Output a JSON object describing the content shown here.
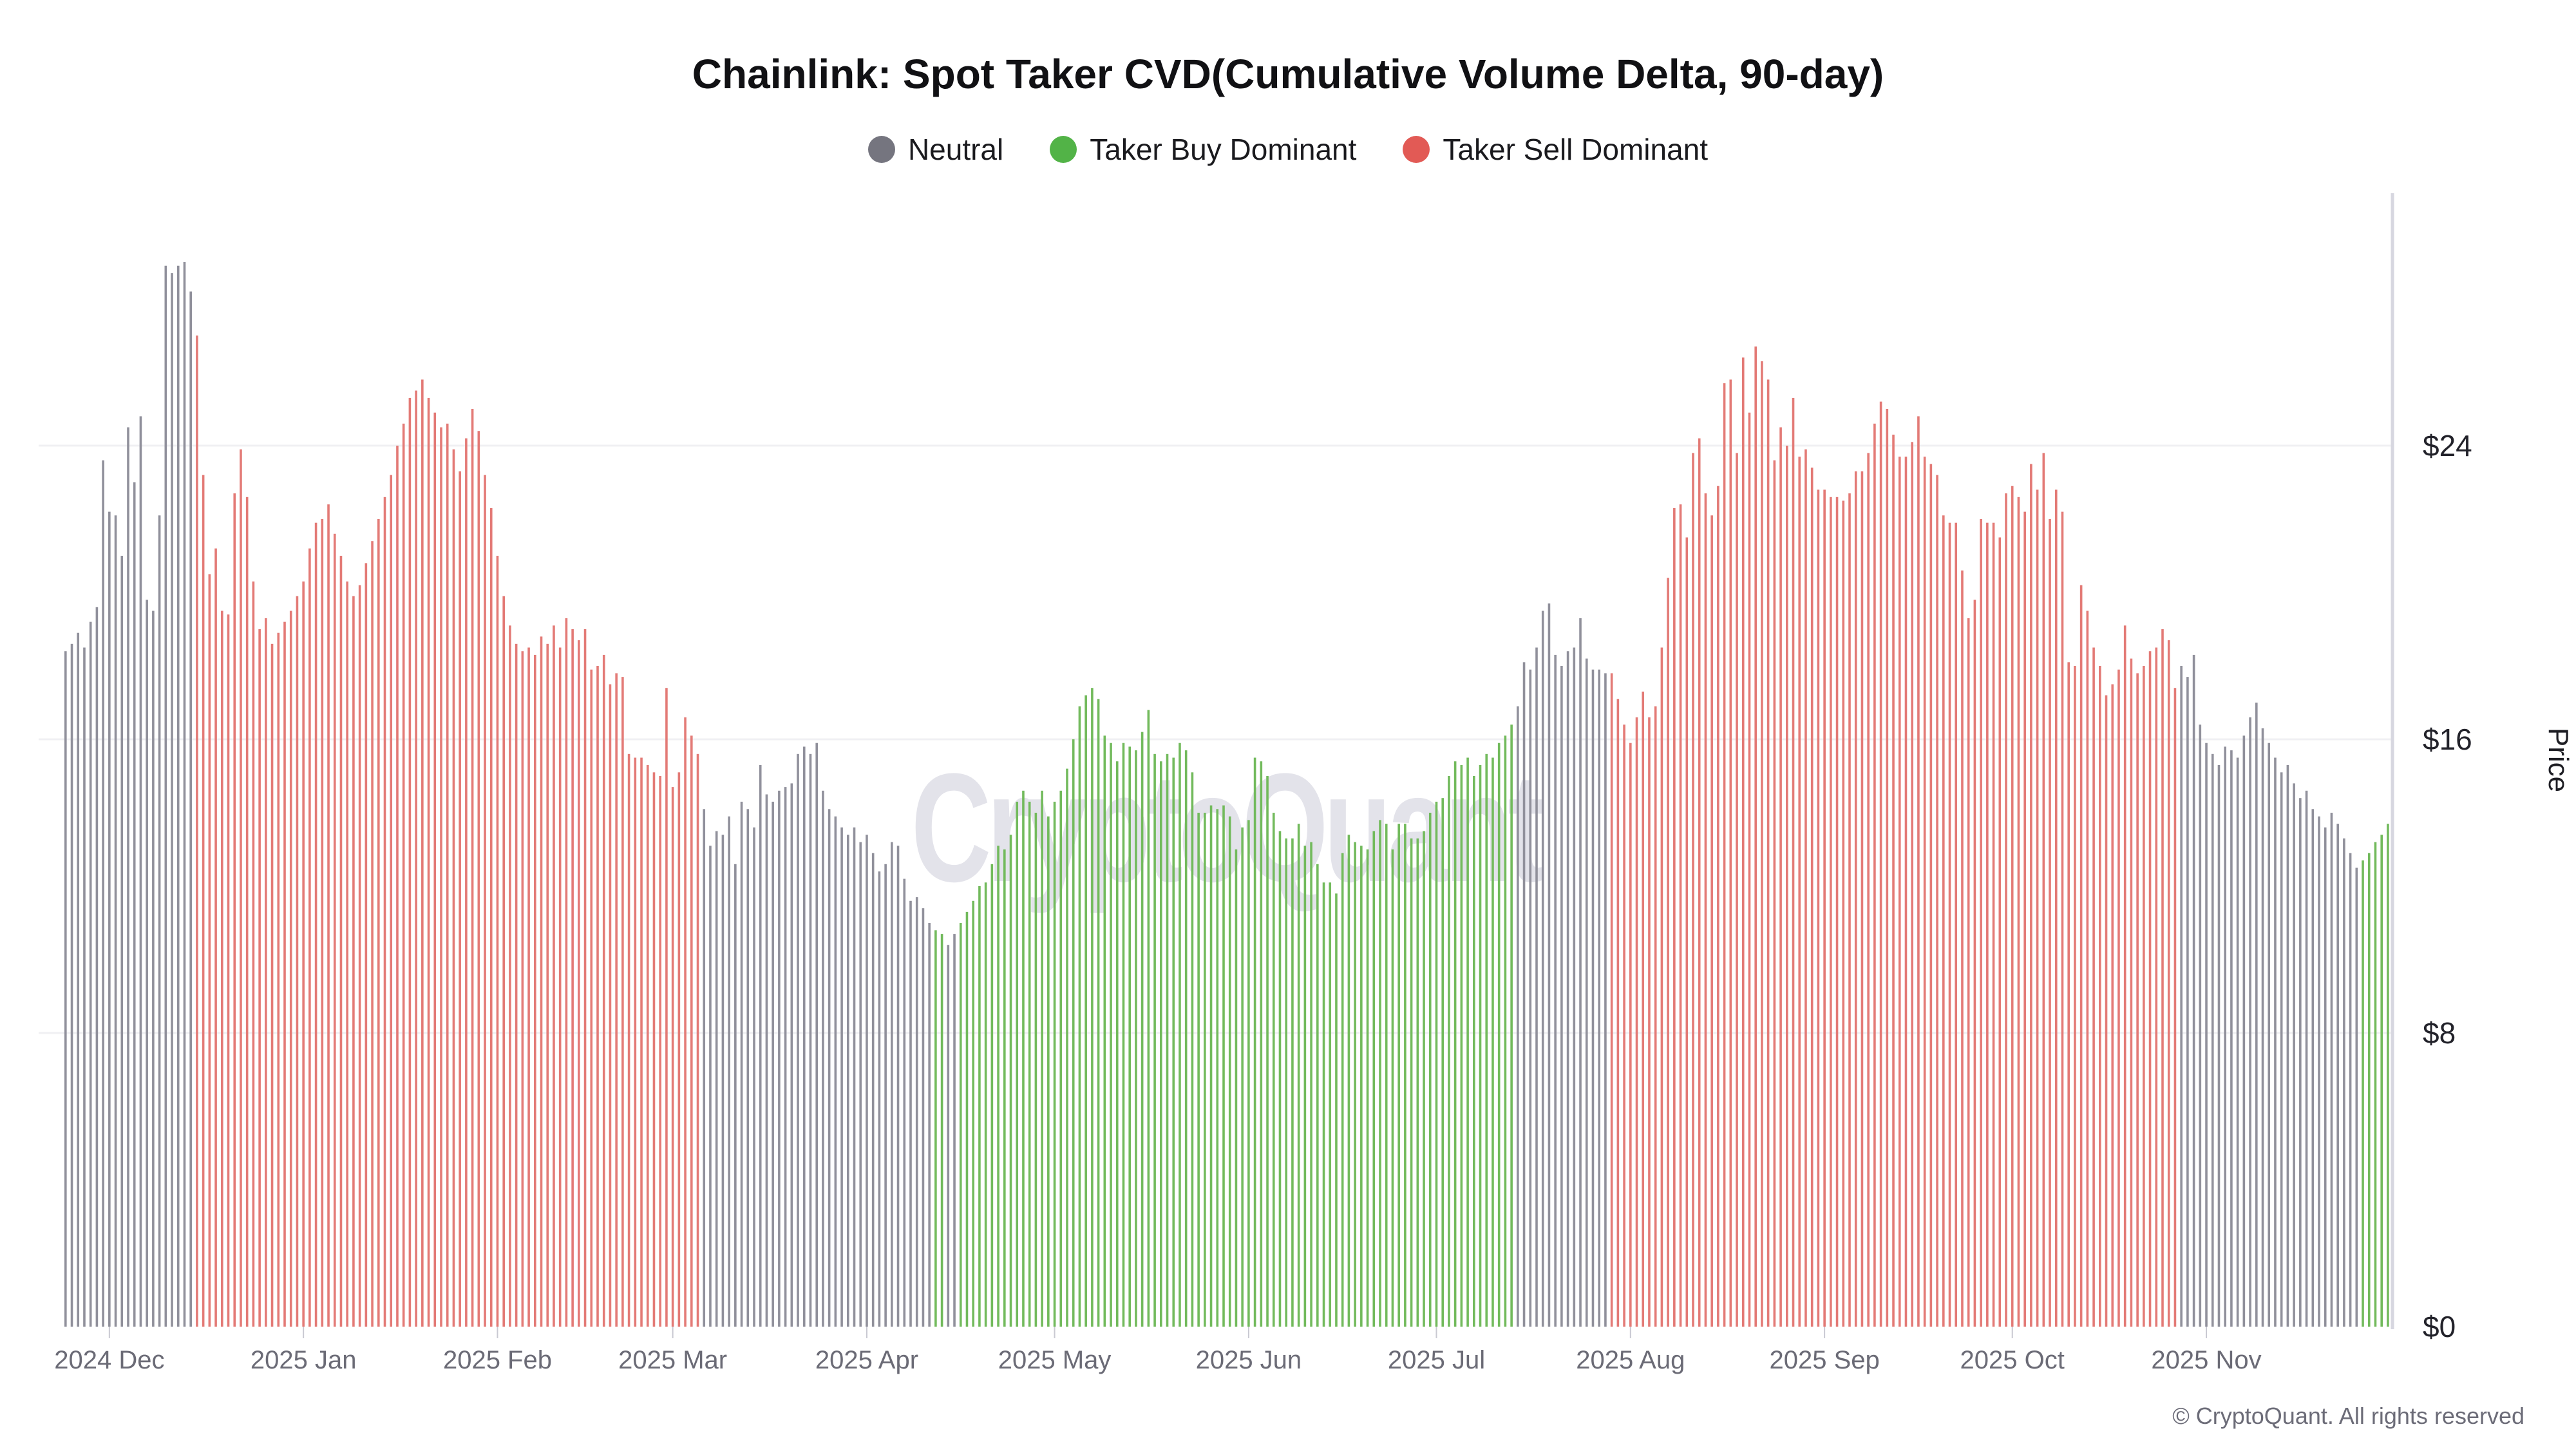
{
  "title": "Chainlink: Spot Taker CVD(Cumulative Volume Delta, 90-day)",
  "watermark": "CryptoQuant",
  "footer": {
    "copyright": "© CryptoQuant. All rights reserved"
  },
  "legend": {
    "items": [
      {
        "id": "neutral",
        "label": "Neutral"
      },
      {
        "id": "buy",
        "label": "Taker Buy Dominant"
      },
      {
        "id": "sell",
        "label": "Taker Sell Dominant"
      }
    ]
  },
  "y_axis": {
    "title": "Price",
    "ticks": [
      {
        "label": "$0",
        "value": 0
      },
      {
        "label": "$8",
        "value": 8
      },
      {
        "label": "$16",
        "value": 16
      },
      {
        "label": "$24",
        "value": 24
      }
    ]
  },
  "chart_data": {
    "type": "bar",
    "title": "Chainlink: Spot Taker CVD(Cumulative Volume Delta, 90-day)",
    "ylabel": "Price",
    "ylim": [
      0,
      30
    ],
    "grid": "horizontal-faint",
    "grid_values": [
      8,
      16,
      24
    ],
    "legend_position": "top",
    "colors": {
      "neutral": "#90909b",
      "buy": "#72ba5c",
      "sell": "#e37a76"
    },
    "legend_colors": {
      "neutral": "#75757f",
      "buy": "#52b347",
      "sell": "#e25a55"
    },
    "x_axis_months": [
      {
        "label": "2024 Dec",
        "index": 7
      },
      {
        "label": "2025 Jan",
        "index": 38
      },
      {
        "label": "2025 Feb",
        "index": 69
      },
      {
        "label": "2025 Mar",
        "index": 97
      },
      {
        "label": "2025 Apr",
        "index": 128
      },
      {
        "label": "2025 May",
        "index": 158
      },
      {
        "label": "2025 Jun",
        "index": 189
      },
      {
        "label": "2025 Jul",
        "index": 219
      },
      {
        "label": "2025 Aug",
        "index": 250
      },
      {
        "label": "2025 Sep",
        "index": 281
      },
      {
        "label": "2025 Oct",
        "index": 311
      },
      {
        "label": "2025 Nov",
        "index": 342
      }
    ],
    "bar_count": 372,
    "segments": [
      {
        "class": "neutral",
        "start_index": 0,
        "values": [
          18.4,
          18.6,
          18.9,
          18.5,
          19.2,
          19.6,
          23.6,
          22.2,
          22.1,
          21.0,
          24.5,
          23.0,
          24.8,
          19.8,
          19.5,
          22.1,
          28.9,
          28.7,
          28.9,
          29.0,
          28.2
        ]
      },
      {
        "class": "sell",
        "start_index": 21,
        "values": [
          27.0,
          23.2,
          20.5,
          21.2,
          19.5,
          19.4,
          22.7,
          23.9,
          22.6,
          20.3,
          19.0,
          19.3,
          18.6,
          18.9,
          19.2,
          19.5,
          19.9,
          20.3,
          21.2,
          21.9,
          22.0,
          22.4,
          21.6,
          21.0,
          20.3,
          19.9,
          20.2,
          20.8,
          21.4,
          22.0,
          22.6,
          23.2,
          24.0,
          24.6,
          25.3,
          25.5,
          25.8,
          25.3,
          24.9,
          24.5,
          24.6,
          23.9,
          23.3,
          24.2,
          25.0,
          24.4,
          23.2,
          22.3,
          21.0,
          19.9,
          19.1,
          18.6,
          18.4,
          18.5,
          18.3,
          18.8,
          18.6,
          19.1,
          18.5,
          19.3,
          19.0,
          18.7,
          19.0,
          17.9,
          18.0,
          18.3,
          17.5,
          17.8,
          17.7,
          15.6,
          15.5,
          15.5,
          15.3,
          15.1,
          15.0,
          17.4,
          14.7,
          15.1,
          16.6,
          16.1,
          15.6
        ]
      },
      {
        "class": "neutral",
        "start_index": 102,
        "values": [
          14.1,
          13.1,
          13.5,
          13.4,
          13.9,
          12.6,
          14.3,
          14.1,
          13.6,
          15.3,
          14.5,
          14.3,
          14.6,
          14.7,
          14.8,
          15.6,
          15.8,
          15.6,
          15.9,
          14.6,
          14.1,
          13.9,
          13.6,
          13.4,
          13.6,
          13.2,
          13.4,
          12.9,
          12.4,
          12.6,
          13.2,
          13.1,
          12.2,
          11.6,
          11.7,
          11.4,
          11.0
        ]
      },
      {
        "class": "buy",
        "start_index": 139,
        "values": [
          10.8,
          10.7
        ]
      },
      {
        "class": "neutral",
        "start_index": 141,
        "values": [
          10.4,
          10.7
        ]
      },
      {
        "class": "buy",
        "start_index": 143,
        "values": [
          11.0,
          11.3,
          11.6,
          12.0,
          12.1,
          12.6,
          13.1,
          13.0,
          13.4,
          14.3,
          14.6,
          14.3,
          14.0,
          14.6,
          13.9,
          14.3,
          14.6,
          15.2,
          16.0,
          16.9,
          17.2,
          17.4,
          17.1,
          16.1,
          15.9,
          15.4,
          15.9,
          15.8,
          15.7,
          16.2,
          16.8,
          15.6,
          15.4,
          15.6,
          15.5,
          15.9,
          15.7,
          15.1,
          14.0,
          14.0,
          14.2,
          14.1,
          14.2,
          13.9,
          13.0,
          13.6,
          13.8,
          15.5,
          15.4,
          15.0,
          14.0,
          13.5,
          13.3,
          13.3,
          13.7,
          13.1,
          13.2,
          12.6,
          12.1,
          12.1,
          11.8,
          12.9,
          13.4,
          13.2,
          13.1,
          13.0,
          13.5,
          13.8,
          13.7,
          13.0,
          13.7,
          13.7,
          13.3,
          13.3,
          13.5,
          14.0,
          14.3,
          14.4,
          15.0,
          15.4,
          15.3,
          15.5,
          15.0,
          15.3,
          15.6,
          15.5,
          15.9,
          16.1,
          16.4
        ]
      },
      {
        "class": "neutral",
        "start_index": 232,
        "values": [
          16.9,
          18.1,
          17.9,
          18.5,
          19.5,
          19.7,
          18.3,
          18.0,
          18.4,
          18.5,
          19.3,
          18.2,
          17.9,
          17.9,
          17.8
        ]
      },
      {
        "class": "sell",
        "start_index": 247,
        "values": [
          17.8,
          17.1,
          16.4,
          15.9,
          16.6,
          17.3,
          16.6,
          16.9,
          18.5,
          20.4,
          22.3,
          22.4,
          21.5,
          23.8,
          24.2,
          22.7,
          22.1,
          22.9,
          25.7,
          25.8,
          23.8,
          26.4,
          24.9,
          26.7,
          26.3,
          25.8,
          23.6,
          24.5,
          24.0,
          25.3,
          23.7,
          23.9,
          23.4,
          22.8,
          22.8,
          22.6,
          22.6,
          22.5,
          22.7,
          23.3,
          23.3,
          23.8,
          24.6,
          25.2,
          25.0,
          24.3,
          23.7,
          23.7,
          24.1,
          24.8,
          23.7,
          23.5,
          23.2,
          22.1,
          21.9,
          21.9,
          20.6,
          19.3,
          19.8,
          22.0,
          21.9,
          21.9,
          21.5,
          22.7,
          22.9,
          22.6,
          22.2,
          23.5,
          22.8,
          23.8,
          22.0,
          22.8,
          22.2,
          18.1,
          18.0,
          20.2,
          19.5,
          18.5,
          18.0,
          17.2,
          17.5,
          17.9,
          19.1,
          18.2,
          17.8,
          18.0,
          18.4,
          18.5,
          19.0,
          18.7,
          17.4
        ]
      },
      {
        "class": "neutral",
        "start_index": 338,
        "values": [
          18.0,
          17.7,
          18.3,
          16.4,
          15.9,
          15.6,
          15.3,
          15.8,
          15.7,
          15.5,
          16.1,
          16.6,
          17.0,
          16.3,
          15.9,
          15.5,
          15.1,
          15.3,
          14.8,
          14.4,
          14.6,
          14.1,
          13.9,
          13.6,
          14.0,
          13.7,
          13.3,
          12.9,
          12.5
        ]
      },
      {
        "class": "buy",
        "start_index": 367,
        "values": [
          12.7,
          12.9,
          13.2,
          13.4,
          13.7
        ]
      }
    ]
  }
}
